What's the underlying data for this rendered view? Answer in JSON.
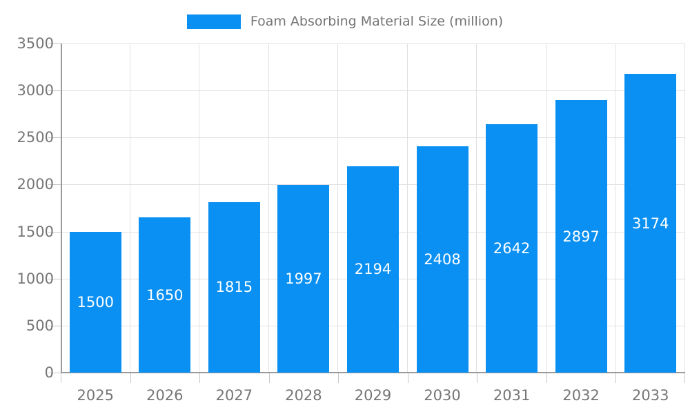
{
  "chart_data": {
    "type": "bar",
    "title": "Foam Absorbing Material Size (million)",
    "legend": {
      "label": "Foam Absorbing Material Size (million)",
      "position": "top-center"
    },
    "categories": [
      "2025",
      "2026",
      "2027",
      "2028",
      "2029",
      "2030",
      "2031",
      "2032",
      "2033"
    ],
    "series": [
      {
        "name": "Foam Absorbing Material Size (million)",
        "values": [
          1500,
          1650,
          1815,
          1997,
          2194,
          2408,
          2642,
          2897,
          3174
        ]
      }
    ],
    "xlabel": "",
    "ylabel": "",
    "ylim": [
      0,
      3500
    ],
    "yticks": [
      0,
      500,
      1000,
      1500,
      2000,
      2500,
      3000,
      3500
    ],
    "grid": true,
    "value_labels_inside_bars": true,
    "colors": {
      "bar": "#0a90f2",
      "value_label": "#ffffff",
      "grid": "#e1e1e1",
      "axis": "#9a9a9a",
      "tick": "#c6c6c6",
      "label": "#757575",
      "background": "#ffffff"
    }
  }
}
